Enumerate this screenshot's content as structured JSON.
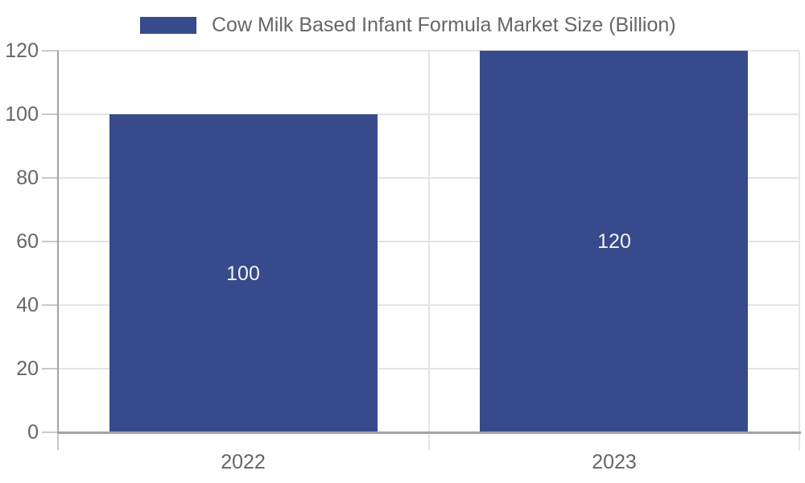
{
  "chart_data": {
    "type": "bar",
    "title": "Cow Milk Based Infant Formula Market Size (Billion)",
    "categories": [
      "2022",
      "2023"
    ],
    "values": [
      100,
      120
    ],
    "bar_value_labels": [
      "100",
      "120"
    ],
    "xlabel": "",
    "ylabel": "",
    "ylim": [
      0,
      120
    ],
    "yticks": [
      0,
      20,
      40,
      60,
      80,
      100,
      120
    ],
    "ytick_labels": [
      "0",
      "20",
      "40",
      "60",
      "80",
      "100",
      "120"
    ],
    "grid": true,
    "legend_position": "top",
    "colors": {
      "bar": "#374a8b",
      "value_label": "#f2f2f2",
      "tick_label": "#666666",
      "legend_text": "#666666",
      "axis_line": "#a3a3a3",
      "tick_line": "#c9c9c9",
      "grid_line": "#e4e4e4"
    }
  }
}
